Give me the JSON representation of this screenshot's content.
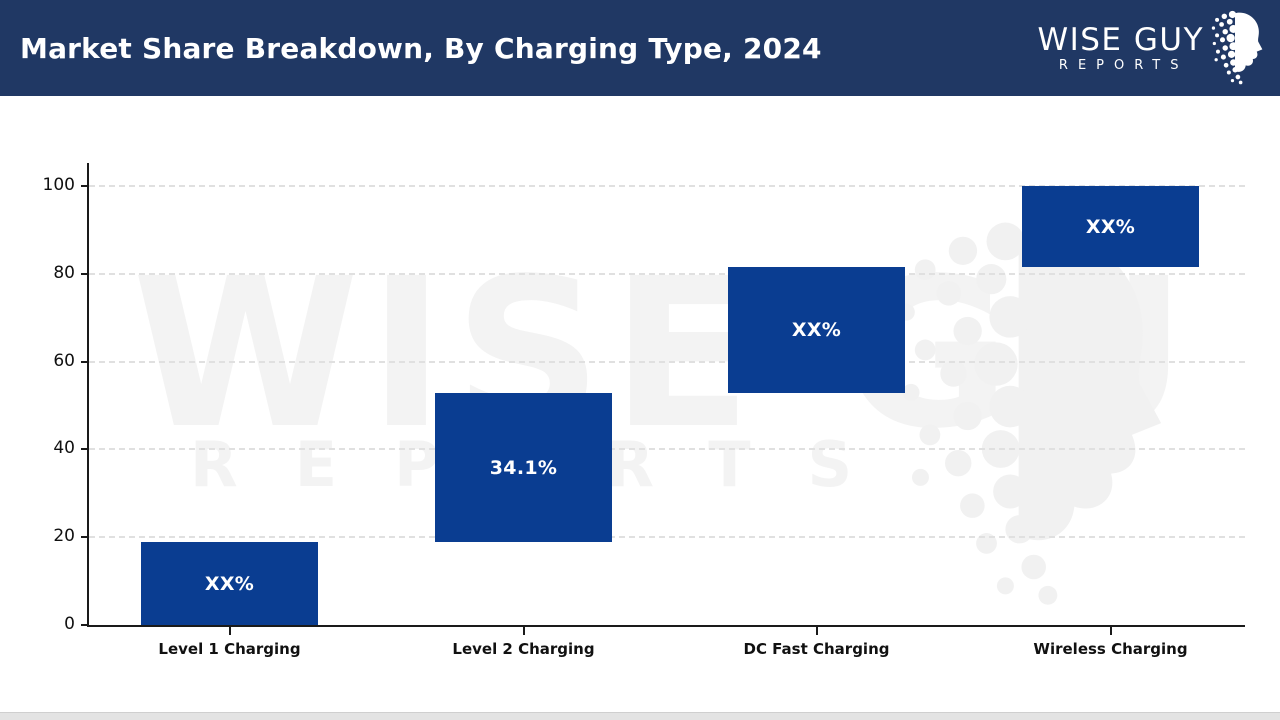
{
  "header": {
    "title": "Market Share Breakdown, By Charging Type, 2024",
    "logo": {
      "line1": "WISE GUY",
      "line2": "REPORTS"
    }
  },
  "watermark": {
    "line1": "WISE GU",
    "line2": "REPORTS"
  },
  "chart_data": {
    "type": "bar",
    "subtype": "floating-waterfall",
    "title": "Market Share Breakdown, By Charging Type, 2024",
    "categories": [
      "Level 1 Charging",
      "Level 2 Charging",
      "DC Fast Charging",
      "Wireless Charging"
    ],
    "series": [
      {
        "category": "Level 1 Charging",
        "start": 0,
        "end": 18.8,
        "label": "XX%"
      },
      {
        "category": "Level 2 Charging",
        "start": 18.8,
        "end": 52.9,
        "label": "34.1%",
        "value": 34.1
      },
      {
        "category": "DC Fast Charging",
        "start": 52.9,
        "end": 81.5,
        "label": "XX%"
      },
      {
        "category": "Wireless Charging",
        "start": 81.5,
        "end": 100,
        "label": "XX%"
      }
    ],
    "xlabel": "",
    "ylabel": "",
    "ylim": [
      0,
      100
    ],
    "yticks": [
      0,
      20,
      40,
      60,
      80,
      100
    ],
    "grid": "horizontal-dashed",
    "legend": "none",
    "bar_color": "#0a3d91",
    "bar_label_color": "#ffffff",
    "axis_color": "#1a1a1a",
    "grid_color": "#e0e0e0",
    "header_bg": "#203864",
    "watermark_color": "#f2f2f2"
  }
}
